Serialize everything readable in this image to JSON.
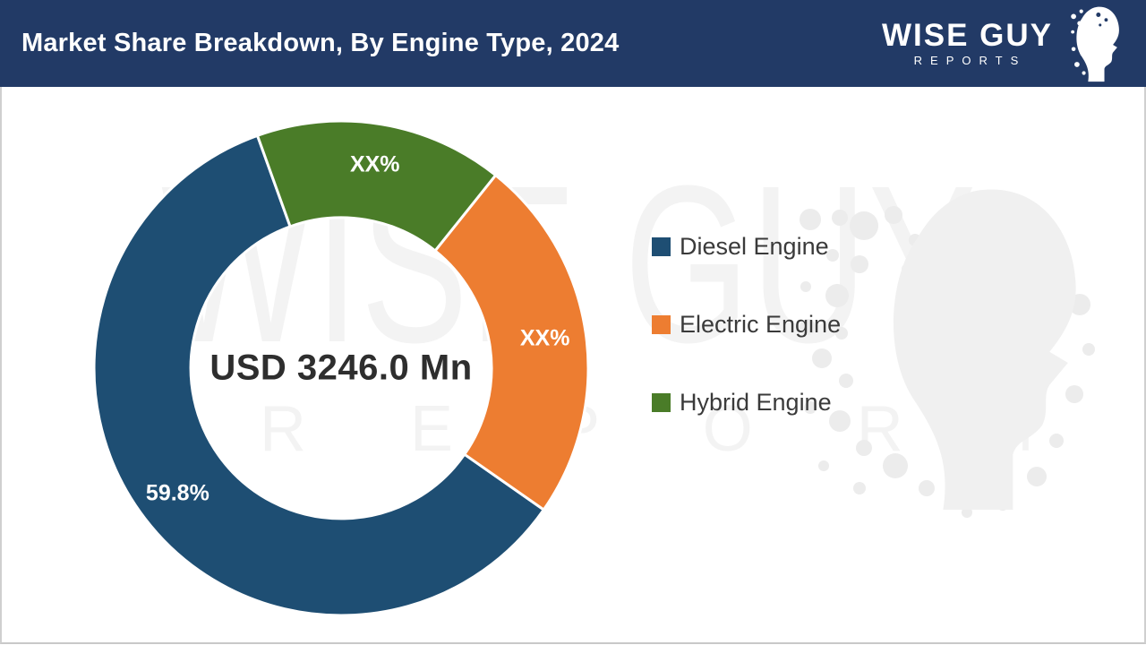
{
  "header": {
    "title": "Market Share Breakdown, By Engine Type, 2024",
    "logo_line1": "WISE GUY",
    "logo_line2": "REPORTS"
  },
  "watermark": {
    "line1": "WISE GUY",
    "line2": "R E P O R T S"
  },
  "chart_data": {
    "type": "pie",
    "subtype": "donut",
    "title": "Market Share Breakdown, By Engine Type, 2024",
    "center_label": "USD 3246.0 Mn",
    "categories": [
      "Diesel Engine",
      "Electric Engine",
      "Hybrid Engine"
    ],
    "values_pct": [
      59.8,
      23.95,
      16.25
    ],
    "slice_labels": [
      "59.8%",
      "XX%",
      "XX%"
    ],
    "colors": [
      "#1E4E73",
      "#ED7D31",
      "#4A7C28"
    ],
    "start_angle_deg": 109.8,
    "direction": "counterclockwise",
    "legend_position": "right",
    "year": "2024"
  },
  "legend": {
    "items": [
      {
        "label": "Diesel Engine",
        "color": "#1E4E73"
      },
      {
        "label": "Electric Engine",
        "color": "#ED7D31"
      },
      {
        "label": "Hybrid Engine",
        "color": "#4A7C28"
      }
    ]
  }
}
